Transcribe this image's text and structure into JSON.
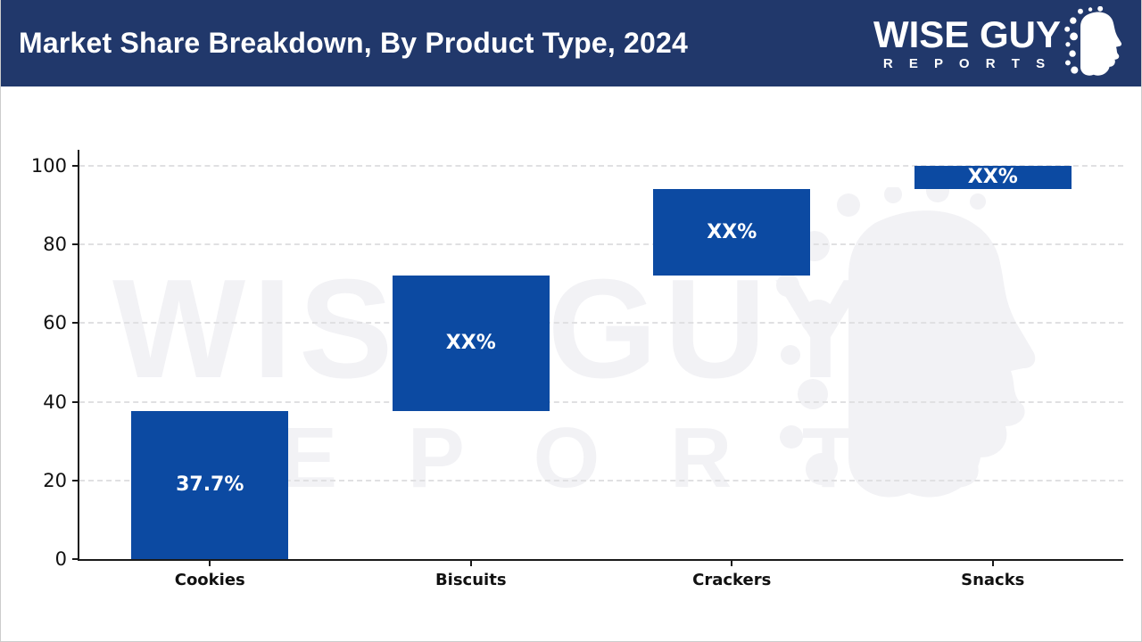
{
  "header": {
    "title": "Market Share Breakdown, By Product Type, 2024",
    "bg_color": "#21386b",
    "logo": {
      "line1": "WISE GUY",
      "line2": "R E P O R T S"
    }
  },
  "watermark": {
    "line1": "WISE GUY",
    "line2": "R E P O R T S"
  },
  "chart_data": {
    "type": "bar",
    "subtype": "waterfall-floating-bars",
    "title": "Market Share Breakdown, By Product Type, 2024",
    "xlabel": "",
    "ylabel": "",
    "categories": [
      "Cookies",
      "Biscuits",
      "Crackers",
      "Snacks"
    ],
    "segments": [
      {
        "category": "Cookies",
        "start": 0,
        "end": 37.7,
        "label": "37.7%"
      },
      {
        "category": "Biscuits",
        "start": 37.7,
        "end": 72.1,
        "label": "XX%"
      },
      {
        "category": "Crackers",
        "start": 72.1,
        "end": 94.1,
        "label": "XX%"
      },
      {
        "category": "Snacks",
        "start": 94.1,
        "end": 100,
        "label": "XX%"
      }
    ],
    "yticks": [
      0,
      20,
      40,
      60,
      80,
      100
    ],
    "ylim": [
      0,
      104
    ],
    "grid": "horizontal-dashed",
    "legend": "none",
    "colors": {
      "bar": "#0c4aa2",
      "bar_label": "#ffffff",
      "gridline": "#e0e0e2",
      "axis": "#1a1a1a",
      "tick_label": "#111111"
    }
  }
}
